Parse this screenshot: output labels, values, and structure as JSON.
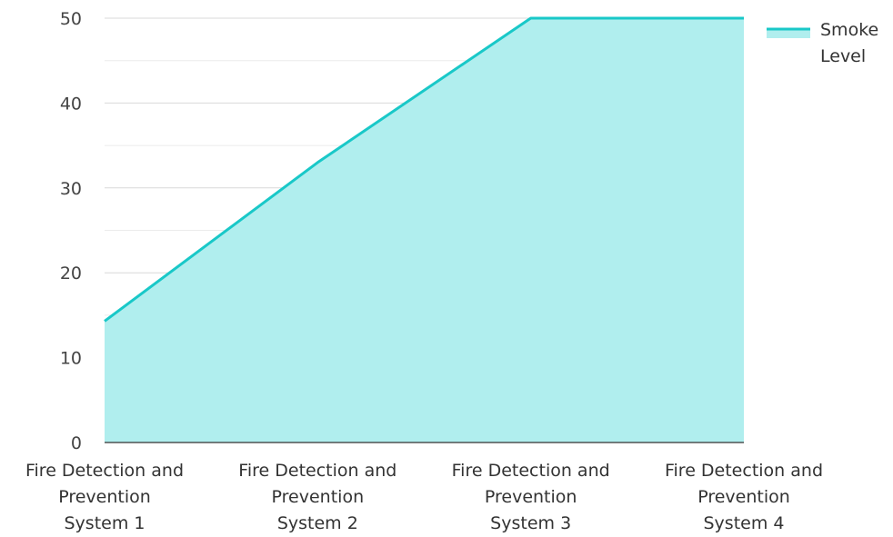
{
  "chart_data": {
    "type": "area",
    "title": "",
    "xlabel": "",
    "ylabel": "",
    "categories": [
      [
        "Fire Detection and",
        "Prevention",
        "System 1"
      ],
      [
        "Fire Detection and",
        "Prevention",
        "System 2"
      ],
      [
        "Fire Detection and",
        "Prevention",
        "System 3"
      ],
      [
        "Fire Detection and",
        "Prevention",
        "System 4"
      ]
    ],
    "series": [
      {
        "name_lines": [
          "Smoke",
          "Level"
        ],
        "values": [
          14.3,
          33,
          50,
          50
        ],
        "line_color": "#19c8c8",
        "fill_color": "#b0eeee"
      }
    ],
    "ylim": [
      0,
      50
    ],
    "yticks": [
      0,
      10,
      20,
      30,
      40,
      50
    ],
    "minor_grid": true,
    "grid": true,
    "legend_position": "top-right"
  }
}
